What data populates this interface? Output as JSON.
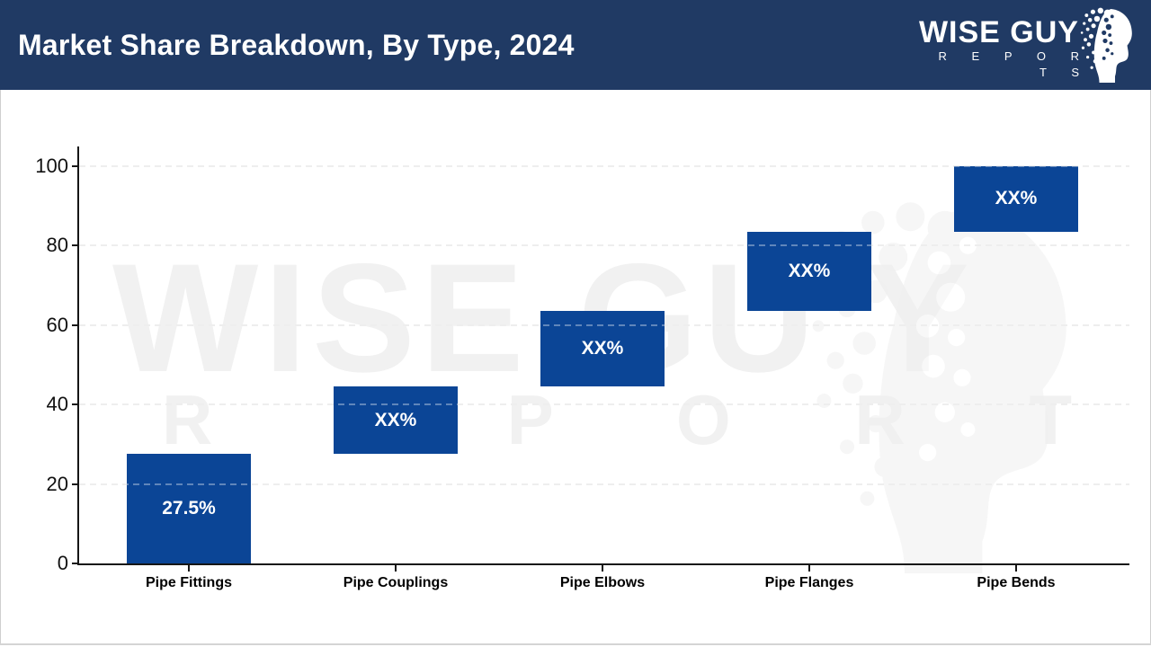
{
  "header": {
    "title": "Market Share Breakdown, By Type, 2024",
    "bg_color": "#203a64",
    "logo": {
      "line1": "WISE GUY",
      "line2": "R E P O R T S"
    }
  },
  "watermark": {
    "line1": "WISE GU Y",
    "line2": "R E P O R T S"
  },
  "chart_data": {
    "type": "bar",
    "subtype": "waterfall",
    "title": "Market Share Breakdown, By Type, 2024",
    "categories": [
      "Pipe Fittings",
      "Pipe Couplings",
      "Pipe Elbows",
      "Pipe Flanges",
      "Pipe Bends"
    ],
    "segments": [
      {
        "category": "Pipe Fittings",
        "start": 0,
        "end": 27.5,
        "label": "27.5%"
      },
      {
        "category": "Pipe Couplings",
        "start": 27.5,
        "end": 44.5,
        "label": "XX%"
      },
      {
        "category": "Pipe Elbows",
        "start": 44.5,
        "end": 63.5,
        "label": "XX%"
      },
      {
        "category": "Pipe Flanges",
        "start": 63.5,
        "end": 83.5,
        "label": "XX%"
      },
      {
        "category": "Pipe Bends",
        "start": 83.5,
        "end": 100,
        "label": "XX%"
      }
    ],
    "yticks": [
      0,
      20,
      40,
      60,
      80,
      100
    ],
    "ylim": [
      0,
      105
    ],
    "xlabel": "",
    "ylabel": "",
    "grid": "dashed-horizontal",
    "legend": "none",
    "bar_color": "#0b4596",
    "bar_label_color": "#ffffff"
  }
}
